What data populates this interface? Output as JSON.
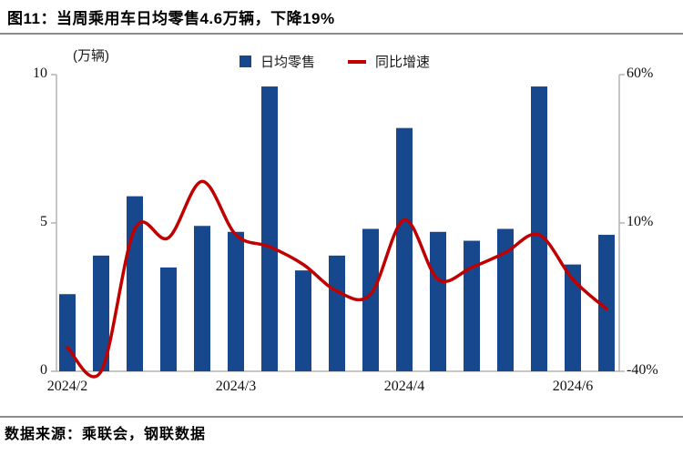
{
  "title": "图11：当周乘用车日均零售4.6万辆，下降19%",
  "footer": {
    "source": "数据来源：乘联会，钢联数据"
  },
  "colors": {
    "bar": "#17478c",
    "line": "#c00000",
    "axis": "#b3b3b3",
    "rule": "#8c8c8c"
  },
  "chart_data": {
    "type": "bar",
    "subtype": "bar-with-line-overlay",
    "title": "当周乘用车日均零售",
    "unit_label": "(万辆)",
    "legend": [
      {
        "label": "日均零售",
        "kind": "bar",
        "color": "#17478c"
      },
      {
        "label": "同比增速",
        "kind": "line",
        "color": "#c00000"
      }
    ],
    "n_points": 17,
    "x_tick_labels": [
      {
        "index": 0,
        "label": "2024/2"
      },
      {
        "index": 5,
        "label": "2024/3"
      },
      {
        "index": 10,
        "label": "2024/4"
      },
      {
        "index": 15,
        "label": "2024/6"
      }
    ],
    "series": [
      {
        "name": "日均零售",
        "kind": "bar",
        "axis": "left",
        "unit": "万辆",
        "values": [
          2.6,
          3.9,
          5.9,
          3.5,
          4.9,
          4.7,
          9.6,
          3.4,
          3.9,
          4.8,
          8.2,
          4.7,
          4.4,
          4.8,
          9.6,
          3.6,
          4.6
        ]
      },
      {
        "name": "同比增速",
        "kind": "line",
        "axis": "right",
        "unit": "%",
        "values": [
          -32,
          -40,
          8,
          5,
          24,
          6,
          2,
          -4,
          -13,
          -14,
          11,
          -9,
          -5,
          0,
          6,
          -9,
          -19
        ]
      }
    ],
    "left_axis": {
      "ticks": [
        0,
        5,
        10
      ],
      "labels": [
        "0",
        "5",
        "10"
      ],
      "range": [
        0,
        10
      ]
    },
    "right_axis": {
      "ticks": [
        -40,
        10,
        60
      ],
      "labels": [
        "-40%",
        "10%",
        "60%"
      ],
      "range": [
        -40,
        60
      ]
    },
    "grid": false,
    "legend_position": "top-center"
  }
}
